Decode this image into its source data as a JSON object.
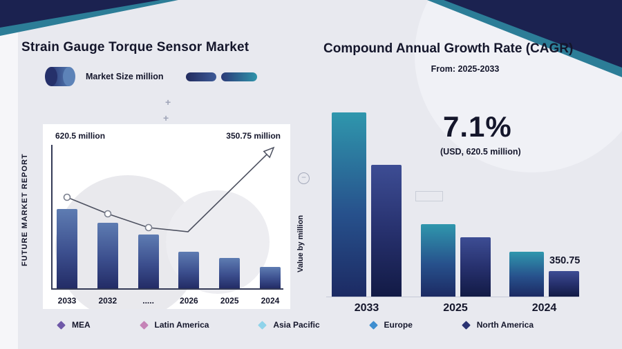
{
  "left": {
    "title": "Strain Gauge Torque Sensor Market",
    "legend_label": "Market Size million",
    "side_label": "FUTURE MARKET REPORT",
    "annotation_left": "620.5 million",
    "annotation_right": "350.75 million"
  },
  "right": {
    "title": "Compound Annual Growth Rate (CAGR)",
    "subtitle": "From: 2025-2033",
    "cagr_value": "7.1%",
    "cagr_note": "(USD, 620.5 million)",
    "value_axis_label": "Value by million",
    "annotation": "350.75"
  },
  "legend": {
    "items": [
      {
        "label": "MEA",
        "color": "#6f58a8"
      },
      {
        "label": "Latin America",
        "color": "#c583b7"
      },
      {
        "label": "Asia Pacific",
        "color": "#8fd3ea"
      },
      {
        "label": "Europe",
        "color": "#3e8ed0"
      },
      {
        "label": "North America",
        "color": "#2a3272"
      }
    ]
  },
  "colors": {
    "background": "#e8e9ef",
    "corner_navy": "#1b2250",
    "corner_teal": "#2c7d97",
    "bar_blue_top": "#5e7cb2",
    "bar_blue_bottom": "#232c66",
    "bar_teal_top": "#2f97ad",
    "bar_navy_top": "#3d4d94"
  },
  "chart_data": [
    {
      "type": "bar",
      "title": "Strain Gauge Torque Sensor Market - Market Size million",
      "categories": [
        "2033",
        "2032",
        ".....",
        "2026",
        "2025",
        "2024"
      ],
      "values": [
        620.5,
        515,
        425,
        285,
        240,
        170
      ],
      "annotations": [
        "620.5 million",
        "350.75 million"
      ],
      "xlabel": "",
      "ylabel": "",
      "ylim": [
        0,
        650
      ],
      "grid": false,
      "trend_overlay": "declining markers with arrow rising to 350.75 million"
    },
    {
      "type": "bar",
      "title": "Compound Annual Growth Rate (CAGR) From: 2025-2033, 7.1% (USD, 620.5 million)",
      "categories": [
        "2033",
        "2025",
        "2024"
      ],
      "series": [
        {
          "name": "series-primary",
          "values": [
            620.5,
            243,
            150
          ]
        },
        {
          "name": "series-secondary",
          "values": [
            443,
            200,
            85
          ]
        }
      ],
      "annotation": {
        "category": "2024",
        "text": "350.75"
      },
      "xlabel": "",
      "ylabel": "Value by million",
      "ylim": [
        0,
        650
      ],
      "grid": false,
      "legend_position": "bottom"
    }
  ]
}
